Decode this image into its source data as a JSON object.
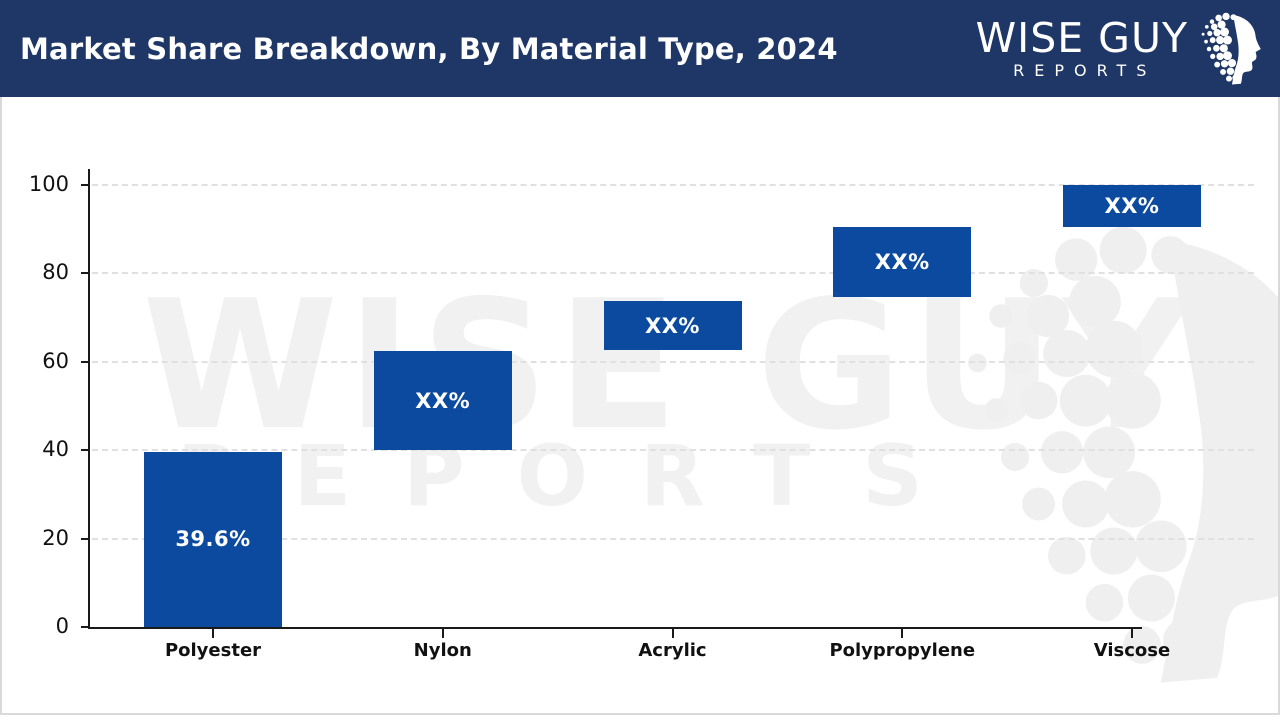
{
  "header": {
    "title": "Market Share Breakdown, By Material Type, 2024",
    "background": "#1e3766",
    "logo": {
      "line1": "WISE GUY",
      "line2": "REPORTS"
    }
  },
  "watermark": {
    "line1": "WISE GUY",
    "line2": "REPORTS"
  },
  "chart_data": {
    "type": "bar",
    "subtype": "waterfall",
    "title": "Market Share Breakdown, By Material Type, 2024",
    "xlabel": "",
    "ylabel": "",
    "categories": [
      "Polyester",
      "Nylon",
      "Acrylic",
      "Polypropylene",
      "Viscose"
    ],
    "segments": [
      {
        "category": "Polyester",
        "start": 0,
        "end": 39.6,
        "label": "39.6%"
      },
      {
        "category": "Nylon",
        "start": 40,
        "end": 62.4,
        "label": "XX%"
      },
      {
        "category": "Acrylic",
        "start": 62.6,
        "end": 73.7,
        "label": "XX%"
      },
      {
        "category": "Polypropylene",
        "start": 74.7,
        "end": 90.6,
        "label": "XX%"
      },
      {
        "category": "Viscose",
        "start": 90.5,
        "end": 100,
        "label": "XX%"
      }
    ],
    "yticks": [
      0,
      20,
      40,
      60,
      80,
      100
    ],
    "ylim": [
      0,
      100
    ],
    "grid": "dashed-horizontal",
    "legend": "none",
    "bar_color": "#0b4a9e",
    "bar_label_color": "#ffffff",
    "axis_color": "#1a1a1a",
    "gridline_color": "#e0e0e0"
  }
}
